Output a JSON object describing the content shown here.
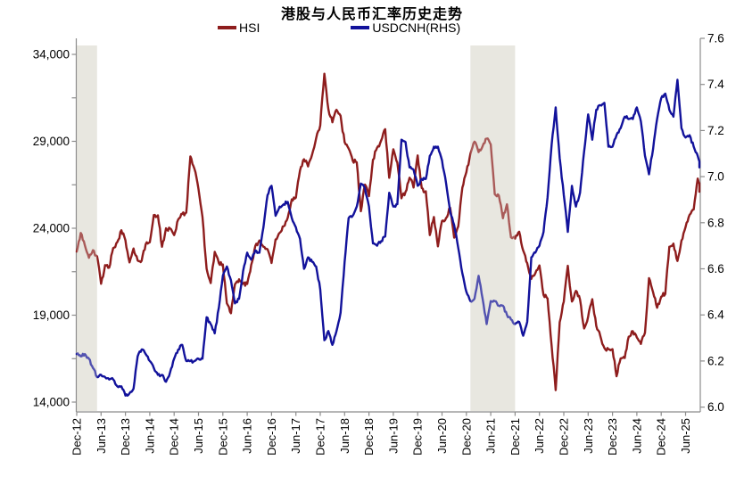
{
  "chart_data": {
    "type": "line",
    "title": "港股与人民币汇率历史走势",
    "x_start": "Dec-2012",
    "x_freq": "monthly",
    "grid": false,
    "legend_position": "top",
    "band_color": "#E9E7E0",
    "axis_color": "#8C8C8C",
    "x_tick_labels": [
      "Dec-12",
      "Jun-13",
      "Dec-13",
      "Jun-14",
      "Dec-14",
      "Jun-15",
      "Dec-15",
      "Jun-16",
      "Dec-16",
      "Jun-17",
      "Dec-17",
      "Jun-18",
      "Dec-18",
      "Jun-19",
      "Dec-19",
      "Jun-20",
      "Dec-20",
      "Jun-21",
      "Dec-21",
      "Jun-22",
      "Dec-22",
      "Jun-23",
      "Dec-23",
      "Jun-24",
      "Dec-24",
      "Jun-25"
    ],
    "y_left": {
      "tick_labels": [
        "34,000",
        "29,000",
        "24,000",
        "19,000",
        "14,000"
      ],
      "tick_values": [
        34000,
        29000,
        24000,
        19000,
        14000
      ],
      "min": 14000,
      "max": 34000,
      "minor_tick_step": 2500
    },
    "y_right": {
      "tick_labels": [
        "7.6",
        "7.4",
        "7.2",
        "7.0",
        "6.8",
        "6.6",
        "6.4",
        "6.2",
        "6.0"
      ],
      "tick_values": [
        7.6,
        7.4,
        7.2,
        7.0,
        6.8,
        6.6,
        6.4,
        6.2,
        6.0
      ],
      "min": 6.0,
      "max": 7.6
    },
    "shaded_bands": [
      {
        "start_month_index": 0,
        "end_month_index": 5,
        "start_label": "Dec-12",
        "end_label": "May-13"
      },
      {
        "start_month_index": 97,
        "end_month_index": 108,
        "start_label": "Jan-21",
        "end_label": "Dec-21"
      }
    ],
    "series": [
      {
        "name": "HSI",
        "axis": "left",
        "color": "#8E1D1D",
        "values": [
          22657,
          23730,
          23020,
          22300,
          22737,
          22392,
          20803,
          21884,
          21731,
          22860,
          23206,
          23881,
          23306,
          22035,
          22837,
          22151,
          22134,
          23082,
          23190,
          24757,
          24742,
          22933,
          23998,
          23987,
          23605,
          24507,
          24823,
          24901,
          28133,
          27424,
          26250,
          24636,
          21671,
          20846,
          22640,
          21996,
          21914,
          19683,
          19112,
          20777,
          21067,
          20815,
          20794,
          21891,
          22977,
          23297,
          22935,
          22790,
          22001,
          23361,
          23741,
          24112,
          24615,
          25661,
          25765,
          27324,
          27970,
          27554,
          28246,
          29177,
          29919,
          32887,
          30845,
          30093,
          30808,
          30469,
          28955,
          28583,
          27889,
          27789,
          24980,
          26507,
          25846,
          27942,
          28633,
          29051,
          29699,
          26901,
          28543,
          27778,
          25725,
          26092,
          26907,
          26346,
          28190,
          26313,
          26130,
          23603,
          24644,
          22961,
          24427,
          24595,
          25177,
          23459,
          24107,
          26341,
          27231,
          28284,
          28980,
          28378,
          28725,
          29152,
          28828,
          25961,
          25879,
          24576,
          25377,
          23475,
          23398,
          23802,
          22713,
          21997,
          21089,
          21415,
          21860,
          20157,
          19954,
          17223,
          14687,
          18597,
          19781,
          21842,
          19786,
          20400,
          19895,
          18234,
          18916,
          19917,
          18382,
          17810,
          17112,
          17043,
          17047,
          15485,
          16511,
          16541,
          17763,
          18080,
          17719,
          17345,
          17989,
          21134,
          20317,
          19424,
          20060,
          20225,
          22941,
          23120,
          22119,
          23290,
          24072,
          24773,
          25078,
          26855,
          26100
        ]
      },
      {
        "name": "USDCNH(RHS)",
        "axis": "right",
        "color": "#12129B",
        "values": [
          6.23,
          6.22,
          6.23,
          6.21,
          6.17,
          6.13,
          6.14,
          6.13,
          6.12,
          6.12,
          6.09,
          6.09,
          6.05,
          6.06,
          6.08,
          6.22,
          6.25,
          6.23,
          6.2,
          6.17,
          6.14,
          6.14,
          6.11,
          6.15,
          6.21,
          6.25,
          6.27,
          6.2,
          6.2,
          6.2,
          6.21,
          6.21,
          6.39,
          6.36,
          6.32,
          6.43,
          6.57,
          6.61,
          6.55,
          6.45,
          6.47,
          6.59,
          6.67,
          6.64,
          6.68,
          6.67,
          6.78,
          6.92,
          6.96,
          6.83,
          6.87,
          6.88,
          6.89,
          6.82,
          6.78,
          6.73,
          6.6,
          6.65,
          6.63,
          6.61,
          6.51,
          6.29,
          6.33,
          6.27,
          6.33,
          6.41,
          6.63,
          6.82,
          6.83,
          6.87,
          6.97,
          6.95,
          6.87,
          6.71,
          6.7,
          6.72,
          6.74,
          6.93,
          6.87,
          6.88,
          7.16,
          7.15,
          7.04,
          7.03,
          6.96,
          6.99,
          6.99,
          7.09,
          7.13,
          7.13,
          7.07,
          6.97,
          6.85,
          6.79,
          6.69,
          6.58,
          6.5,
          6.46,
          6.47,
          6.57,
          6.47,
          6.36,
          6.46,
          6.46,
          6.44,
          6.44,
          6.4,
          6.38,
          6.36,
          6.37,
          6.31,
          6.37,
          6.65,
          6.67,
          6.7,
          6.76,
          6.91,
          7.14,
          7.3,
          7.08,
          6.92,
          6.76,
          6.96,
          6.87,
          6.93,
          7.11,
          7.27,
          7.16,
          7.29,
          7.31,
          7.32,
          7.13,
          7.13,
          7.18,
          7.21,
          7.26,
          7.25,
          7.25,
          7.3,
          7.24,
          7.09,
          7.01,
          7.12,
          7.25,
          7.34,
          7.36,
          7.29,
          7.26,
          7.42,
          7.21,
          7.17,
          7.18,
          7.13,
          7.09,
          7.04
        ]
      }
    ]
  }
}
